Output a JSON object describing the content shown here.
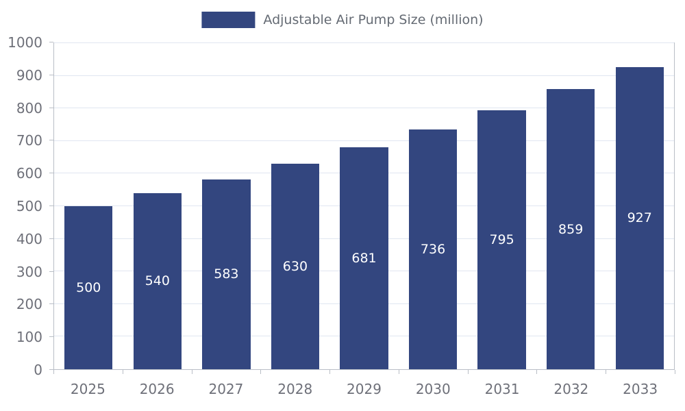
{
  "chart_data": {
    "type": "bar",
    "legend": "Adjustable Air Pump Size (million)",
    "categories": [
      "2025",
      "2026",
      "2027",
      "2028",
      "2029",
      "2030",
      "2031",
      "2032",
      "2033"
    ],
    "values": [
      500,
      540,
      583,
      630,
      681,
      736,
      795,
      859,
      927
    ],
    "ylim": [
      0,
      1000
    ],
    "yticks": [
      0,
      100,
      200,
      300,
      400,
      500,
      600,
      700,
      800,
      900,
      1000
    ],
    "grid": true,
    "legend_position": "top-center",
    "colors": {
      "bar": "#33467f",
      "value_label": "#ffffff",
      "axis_text": "#6e7079",
      "legend_text": "#646a73",
      "gridline": "#e0e6f1",
      "axis_line": "#b9bec6"
    }
  }
}
